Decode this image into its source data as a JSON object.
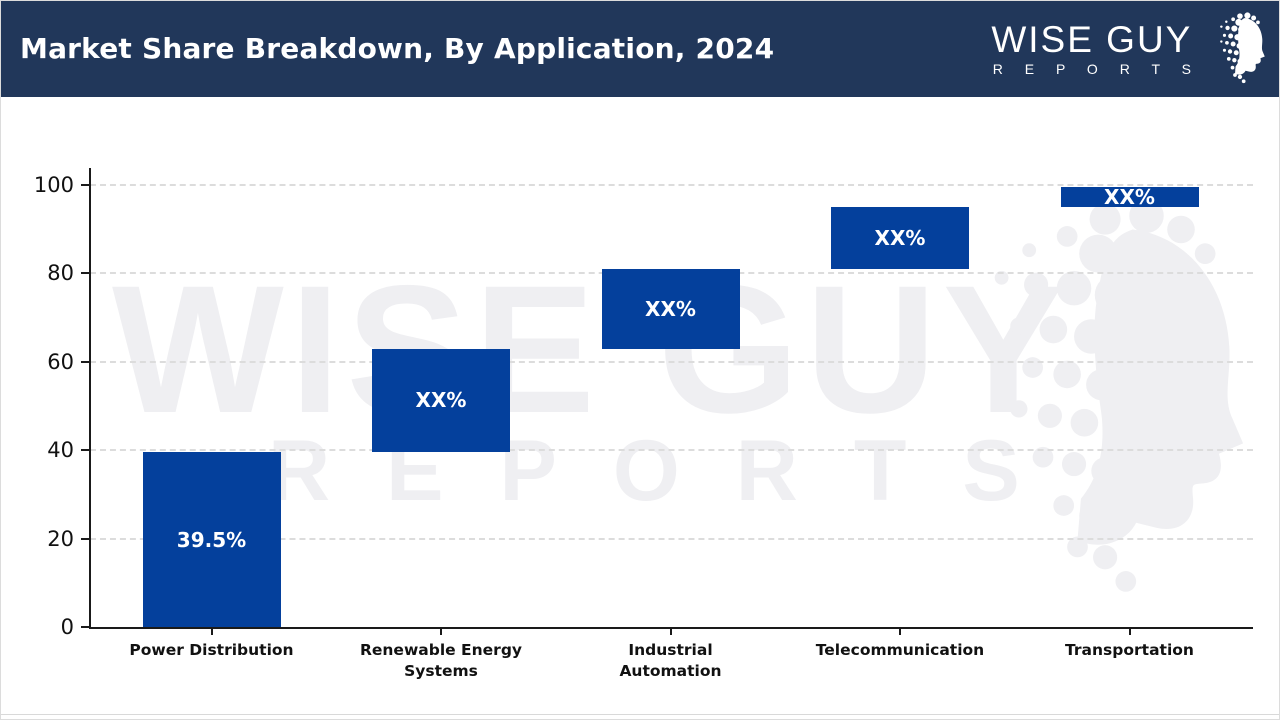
{
  "header": {
    "title": "Market Share Breakdown, By Application, 2024",
    "bg_color": "#21375a",
    "logo": {
      "line1": "WISE GUY",
      "line2": "R E P O R T S"
    }
  },
  "watermark": {
    "line1": "WISE GUY",
    "line2": "REPORTS"
  },
  "chart_data": {
    "type": "bar",
    "subtype": "waterfall",
    "title": "Market Share Breakdown, By Application, 2024",
    "xlabel": "",
    "ylabel": "",
    "ylim": [
      0,
      104
    ],
    "y_ticks": [
      0,
      20,
      40,
      60,
      80,
      100
    ],
    "grid": "horizontal dashed",
    "legend": "none",
    "bar_color": "#04409c",
    "bar_label_color": "#ffffff",
    "categories": [
      "Power Distribution",
      "Renewable Energy Systems",
      "Industrial Automation",
      "Telecommunication",
      "Transportation"
    ],
    "segments": [
      {
        "category": "Power Distribution",
        "start": 0,
        "end": 39.5,
        "label": "39.5%"
      },
      {
        "category": "Renewable Energy Systems",
        "start": 39.5,
        "end": 63,
        "label": "XX%"
      },
      {
        "category": "Industrial Automation",
        "start": 63,
        "end": 81,
        "label": "XX%"
      },
      {
        "category": "Telecommunication",
        "start": 81,
        "end": 95,
        "label": "XX%"
      },
      {
        "category": "Transportation",
        "start": 95,
        "end": 99.5,
        "label": "XX%"
      }
    ]
  }
}
